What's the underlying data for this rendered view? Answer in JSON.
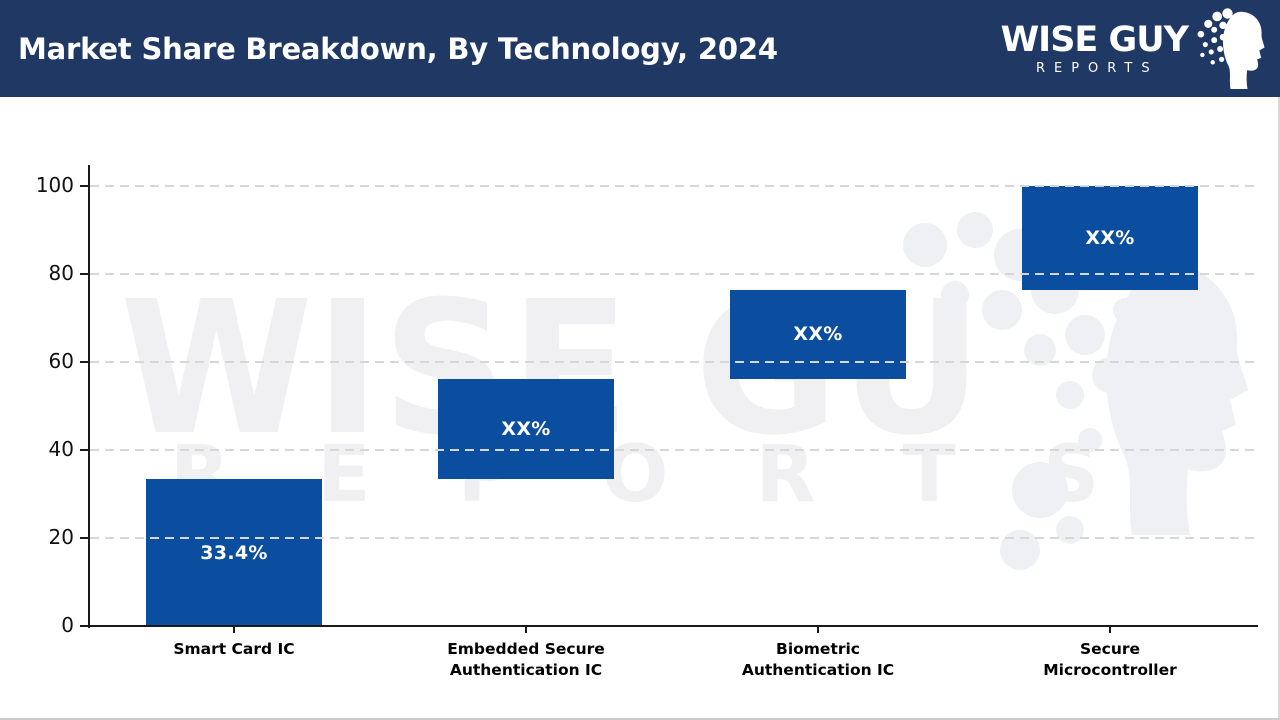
{
  "header": {
    "title": "Market Share Breakdown, By Technology, 2024",
    "logo": {
      "line1": "WISE GUY",
      "line2": "REPORTS"
    }
  },
  "watermark": {
    "line1": "WISE GU",
    "line2": "R E P O R T S"
  },
  "colors": {
    "header_bg": "#203864",
    "bar": "#0b4d9f",
    "bar_label": "#ffffff",
    "gridline": "#d6d6d6",
    "axis": "#1a1a1a",
    "watermark": "#f0f0f3"
  },
  "chart_data": {
    "type": "bar",
    "subtype": "waterfall",
    "title": "Market Share Breakdown, By Technology, 2024",
    "categories": [
      "Smart Card IC",
      "Embedded Secure\nAuthentication IC",
      "Biometric\nAuthentication IC",
      "Secure\nMicrocontroller"
    ],
    "segments": [
      {
        "start": 0,
        "end": 33.4,
        "label": "33.4%"
      },
      {
        "start": 33.4,
        "end": 56.2,
        "label": "XX%"
      },
      {
        "start": 56.2,
        "end": 76.4,
        "label": "XX%"
      },
      {
        "start": 76.4,
        "end": 100,
        "label": "XX%"
      }
    ],
    "yticks": [
      0,
      20,
      40,
      60,
      80,
      100
    ],
    "ylim": [
      0,
      105
    ],
    "grid": "horizontal-dashed-over-bars",
    "legend": "none"
  }
}
